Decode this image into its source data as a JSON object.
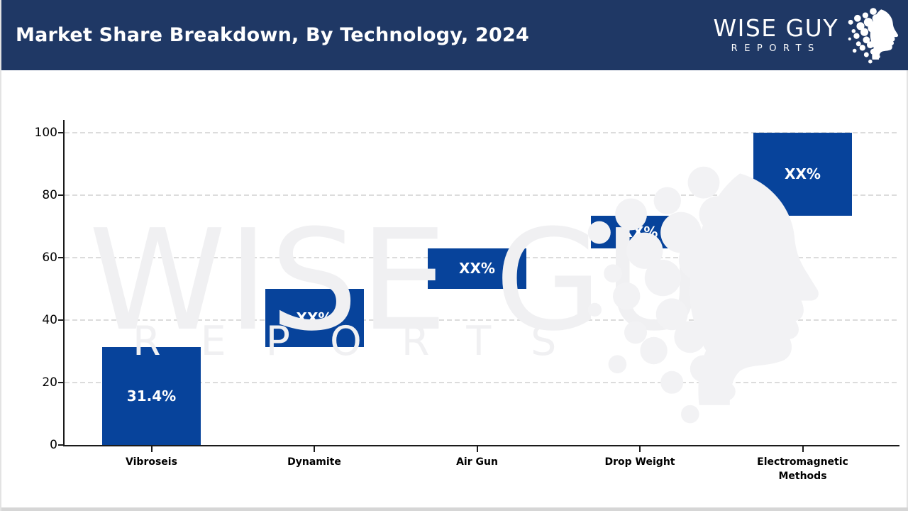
{
  "header": {
    "title": "Market Share Breakdown, By Technology, 2024",
    "logo": {
      "wordmark": "WISE GUY",
      "wordmark_sub": "REPORTS"
    }
  },
  "watermark": {
    "line1": "WISE GUY",
    "line2": "REPORTS"
  },
  "colors": {
    "header_bg": "#1F3865",
    "bar": "#07439B",
    "bar_label": "#FFFFFF",
    "grid": "#DCDCDC",
    "axis": "#1A1A1A",
    "watermark_text": "#F0F0F2",
    "watermark_head": "#F2F2F4",
    "footer_strip": "#D6D6D6"
  },
  "chart_data": {
    "type": "bar",
    "variant": "waterfall",
    "title": "Market Share Breakdown, By Technology, 2024",
    "categories": [
      "Vibroseis",
      "Dynamite",
      "Air Gun",
      "Drop Weight",
      "Electromagnetic Methods"
    ],
    "series": [
      {
        "name": "Market Share (%)",
        "segments": [
          {
            "category": "Vibroseis",
            "start": 0,
            "end": 31.4,
            "label": "31.4%"
          },
          {
            "category": "Dynamite",
            "start": 31.4,
            "end": 50.0,
            "label": "XX%"
          },
          {
            "category": "Air Gun",
            "start": 50.0,
            "end": 63.0,
            "label": "XX%"
          },
          {
            "category": "Drop Weight",
            "start": 63.0,
            "end": 73.5,
            "label": "XX%"
          },
          {
            "category": "Electromagnetic Methods",
            "start": 73.5,
            "end": 100.0,
            "label": "XX%"
          }
        ]
      }
    ],
    "xlabel": "",
    "ylabel": "",
    "ylim": [
      0,
      104
    ],
    "yticks": [
      0,
      20,
      40,
      60,
      80,
      100
    ],
    "grid": "horizontal-dashed",
    "legend": "none"
  }
}
